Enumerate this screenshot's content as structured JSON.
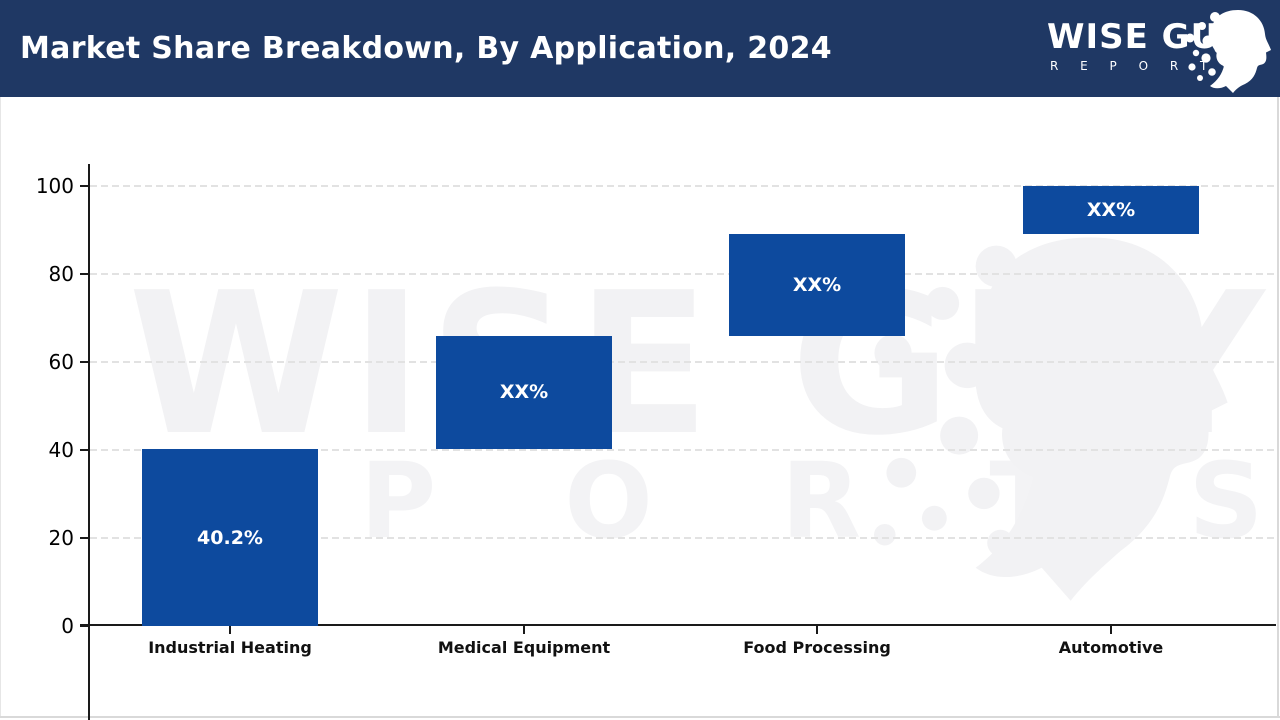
{
  "header": {
    "title": "Market Share Breakdown, By Application, 2024",
    "logo": {
      "line1": "WISE GUY",
      "line2": "R E P O R T S",
      "face_icon": "dotted-head-profile"
    }
  },
  "watermark": {
    "line1": "WISE GUY",
    "line2": "P O R T S",
    "face_icon": "dotted-head-profile"
  },
  "colors": {
    "header_bg": "#1f3864",
    "bar": "#0d4a9e",
    "bar_label": "#ffffff",
    "gridline": "#e2e2e2",
    "axis": "#1a1a1a",
    "watermark": "#f2f2f4"
  },
  "chart_data": {
    "type": "bar",
    "subtype": "waterfall",
    "title": "Market Share Breakdown, By Application, 2024",
    "xlabel": "",
    "ylabel": "",
    "categories": [
      "Industrial Heating",
      "Medical Equipment",
      "Food Processing",
      "Automotive"
    ],
    "segments": [
      {
        "category": "Industrial Heating",
        "start": 0,
        "end": 40.2,
        "value_label": "40.2%",
        "estimated_value": 40.2
      },
      {
        "category": "Medical Equipment",
        "start": 40.2,
        "end": 66.0,
        "value_label": "XX%",
        "estimated_value": 25.8
      },
      {
        "category": "Food Processing",
        "start": 66.0,
        "end": 89.0,
        "value_label": "XX%",
        "estimated_value": 23.0
      },
      {
        "category": "Automotive",
        "start": 89.0,
        "end": 100.0,
        "value_label": "XX%",
        "estimated_value": 11.0
      }
    ],
    "y_ticks": [
      0,
      20,
      40,
      60,
      80,
      100
    ],
    "ylim": [
      0,
      105
    ],
    "grid": "horizontal-dashed",
    "legend": false,
    "bar_color": "#0d4a9e"
  }
}
